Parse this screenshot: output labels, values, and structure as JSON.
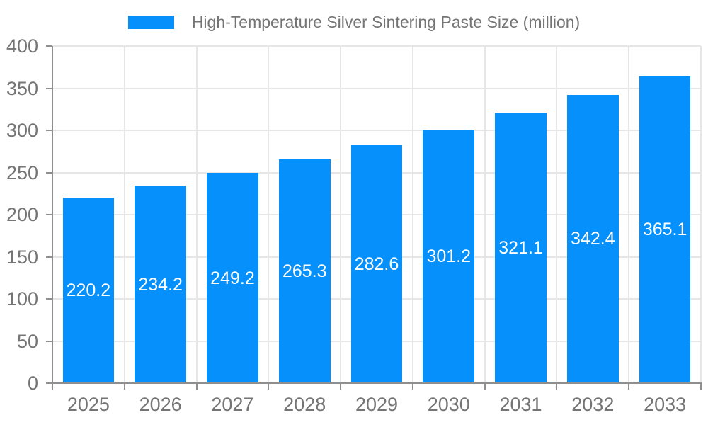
{
  "legend": {
    "label": "High-Temperature Silver Sintering Paste Size (million)"
  },
  "chart_data": {
    "type": "bar",
    "title": "High-Temperature Silver Sintering Paste Size (million)",
    "categories": [
      "2025",
      "2026",
      "2027",
      "2028",
      "2029",
      "2030",
      "2031",
      "2032",
      "2033"
    ],
    "series": [
      {
        "name": "High-Temperature Silver Sintering Paste Size (million)",
        "values": [
          220.2,
          234.2,
          249.2,
          265.3,
          282.6,
          301.2,
          321.1,
          342.4,
          365.1
        ]
      }
    ],
    "xlabel": "",
    "ylabel": "",
    "ylim": [
      0,
      400
    ],
    "ytick_step": 50,
    "yticks": [
      0,
      50,
      100,
      150,
      200,
      250,
      300,
      350,
      400
    ],
    "grid": true,
    "legend_position": "top-center",
    "colors": {
      "bar": "#0590FB",
      "grid": "#e6e6e6",
      "axis": "#8f8f8f",
      "tick_label": "#757575",
      "bar_label": "#ffffff",
      "legend_text": "#757575"
    }
  }
}
